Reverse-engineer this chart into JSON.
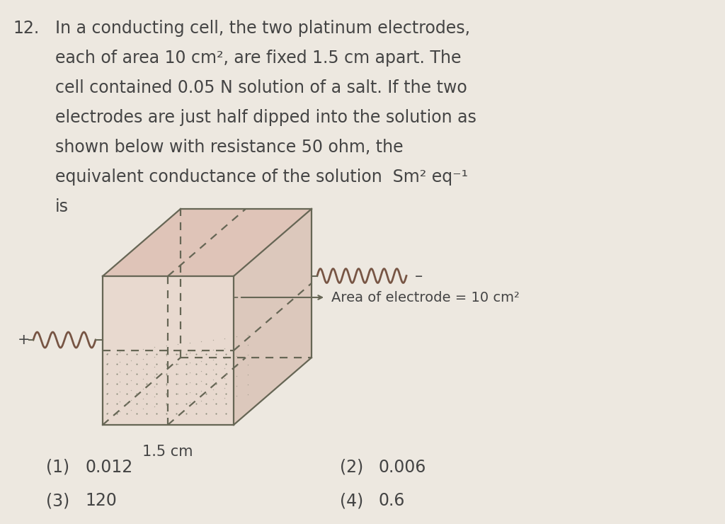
{
  "bg_color": "#ede8e0",
  "text_color": "#444444",
  "question_number": "12.",
  "question_text_lines": [
    "In a conducting cell, the two platinum electrodes,",
    "each of area 10 cm², are fixed 1.5 cm apart. The",
    "cell contained 0.05 N solution of a salt. If the two",
    "electrodes are just half dipped into the solution as",
    "shown below with resistance 50 ohm, the",
    "equivalent conductance of the solution  Sm² eq⁻¹",
    "is"
  ],
  "options": [
    {
      "num": "(1)",
      "val": "0.012"
    },
    {
      "num": "(2)",
      "val": "0.006"
    },
    {
      "num": "(3)",
      "val": "120"
    },
    {
      "num": "(4)",
      "val": "0.6"
    }
  ],
  "diagram_label_area": "Area of electrode = 10 cm²",
  "diagram_label_dist": "1.5 cm",
  "line_color": "#666655",
  "dot_color": "#888877",
  "coil_color": "#775544"
}
